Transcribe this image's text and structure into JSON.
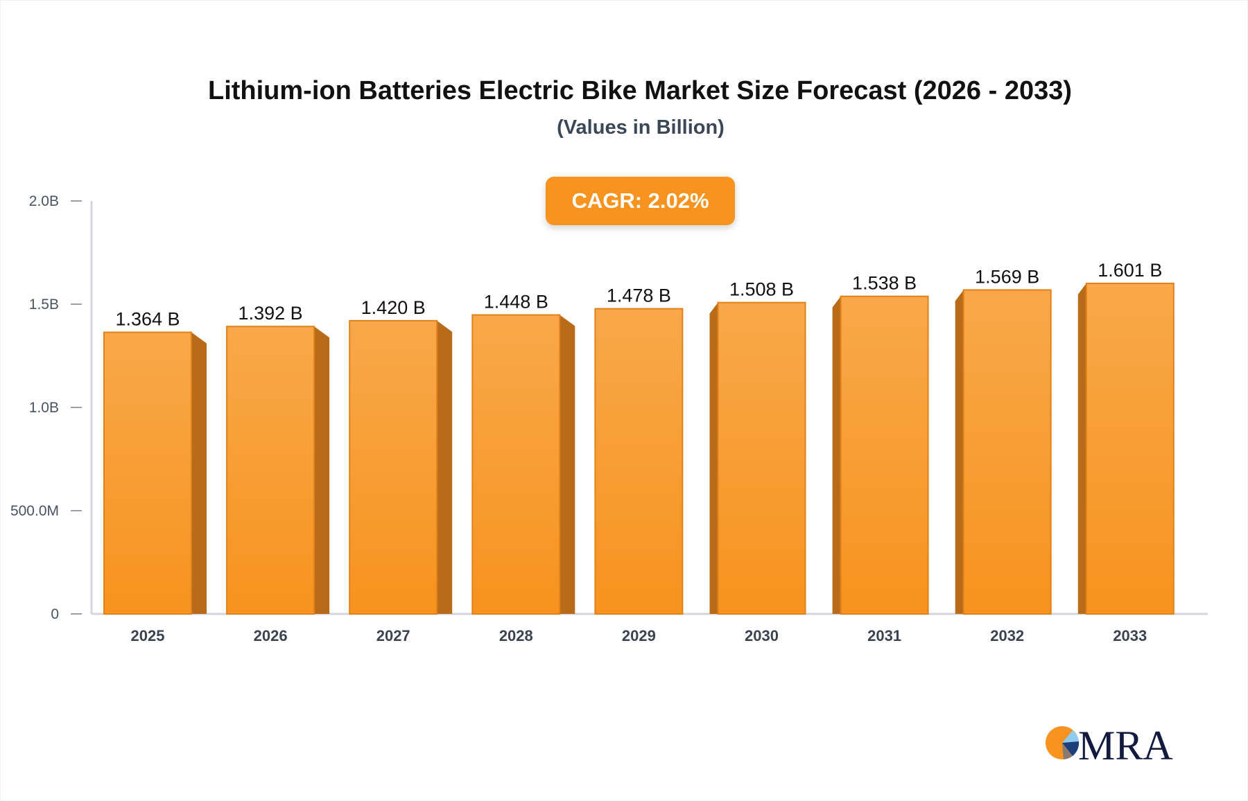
{
  "chart_data": {
    "type": "bar",
    "title": "Lithium-ion Batteries Electric Bike Market Size Forecast (2026 - 2033)",
    "subtitle": "(Values in Billion)",
    "annotation": "CAGR: 2.02%",
    "categories": [
      "2025",
      "2026",
      "2027",
      "2028",
      "2029",
      "2030",
      "2031",
      "2032",
      "2033"
    ],
    "values": [
      1.364,
      1.392,
      1.42,
      1.448,
      1.478,
      1.508,
      1.538,
      1.569,
      1.601
    ],
    "data_labels": [
      "1.364 B",
      "1.392 B",
      "1.420 B",
      "1.448 B",
      "1.478 B",
      "1.508 B",
      "1.538 B",
      "1.569 B",
      "1.601 B"
    ],
    "unit": "B",
    "ylim": [
      0,
      2.0
    ],
    "yticks": [
      0,
      0.5,
      1.0,
      1.5,
      2.0
    ],
    "ytick_labels": [
      "0",
      "500.0M",
      "1.0B",
      "1.5B",
      "2.0B"
    ],
    "grid": false,
    "colors": {
      "bar_top": "#f8a84a",
      "bar_bottom": "#f7931e",
      "bar_side": "#b86c1a",
      "accent": "#f7931e"
    }
  },
  "logo": {
    "text": "MRA"
  }
}
